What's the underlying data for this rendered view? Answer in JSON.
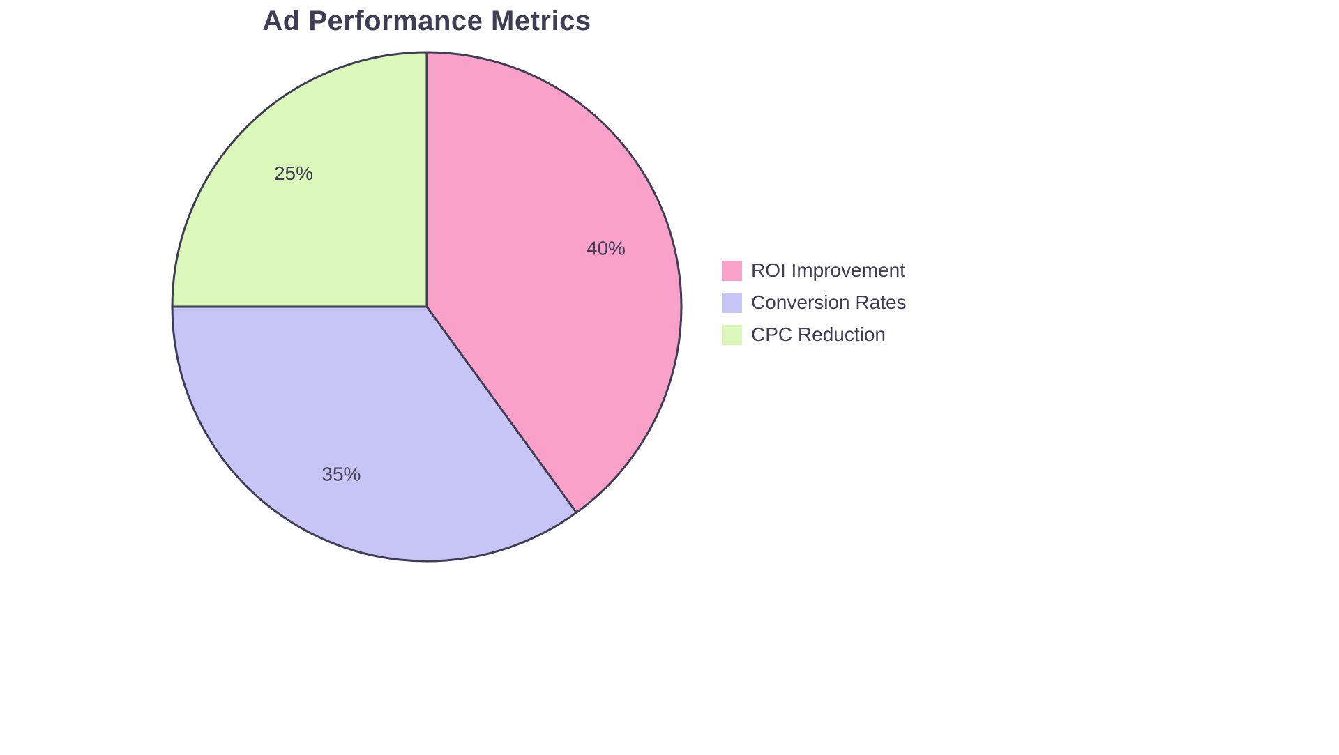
{
  "page": {
    "background": "#ffffff"
  },
  "chart_data": {
    "type": "pie",
    "title": "Ad Performance Metrics",
    "legend_position": "right",
    "start_angle_deg": 0,
    "direction": "clockwise",
    "stroke_color": "#3F3D56",
    "label_color": "#3F3D56",
    "title_color": "#3F3D56",
    "slices": [
      {
        "label": "ROI Improvement",
        "value": 40,
        "percent_label": "40%",
        "color": "#F9A1C9"
      },
      {
        "label": "Conversion Rates",
        "value": 35,
        "percent_label": "35%",
        "color": "#C7C5F5"
      },
      {
        "label": "CPC Reduction",
        "value": 25,
        "percent_label": "25%",
        "color": "#DBF8BA"
      }
    ]
  }
}
